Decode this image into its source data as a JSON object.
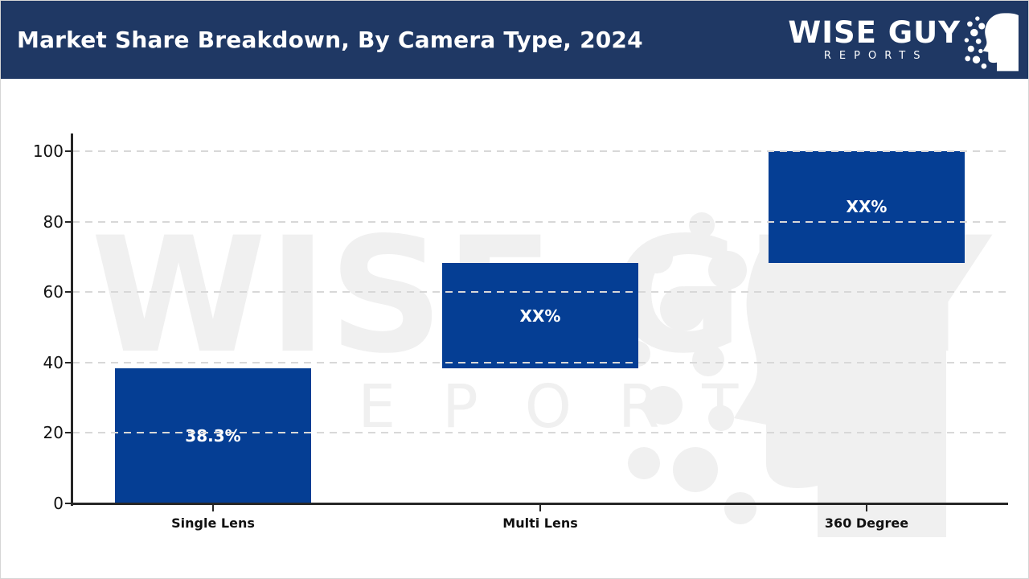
{
  "header": {
    "title": "Market Share Breakdown, By Camera Type, 2024"
  },
  "logo": {
    "name": "WISE GUY",
    "subtitle": "REPORTS"
  },
  "watermark": {
    "line1": "WISE GUY",
    "line2": "REPORTS"
  },
  "chart_data": {
    "type": "bar",
    "subtype": "waterfall",
    "title": "Market Share Breakdown, By Camera Type, 2024",
    "categories": [
      "Single Lens",
      "Multi Lens",
      "360 Degree"
    ],
    "segments": [
      {
        "category": "Single Lens",
        "from": 0,
        "to": 38.3,
        "label": "38.3%"
      },
      {
        "category": "Multi Lens",
        "from": 38.3,
        "to": 68.3,
        "label": "XX%"
      },
      {
        "category": "360 Degree",
        "from": 68.3,
        "to": 100,
        "label": "XX%"
      }
    ],
    "y_ticks": [
      0,
      20,
      40,
      60,
      80,
      100
    ],
    "ylim": [
      0,
      105
    ],
    "xlabel": "",
    "ylabel": "",
    "grid": "dashed-horizontal",
    "legend": "none",
    "colors": {
      "bar": "#053e94",
      "header": "#1f3864",
      "gridline": "#d8d8d8",
      "axis": "#262626"
    }
  }
}
